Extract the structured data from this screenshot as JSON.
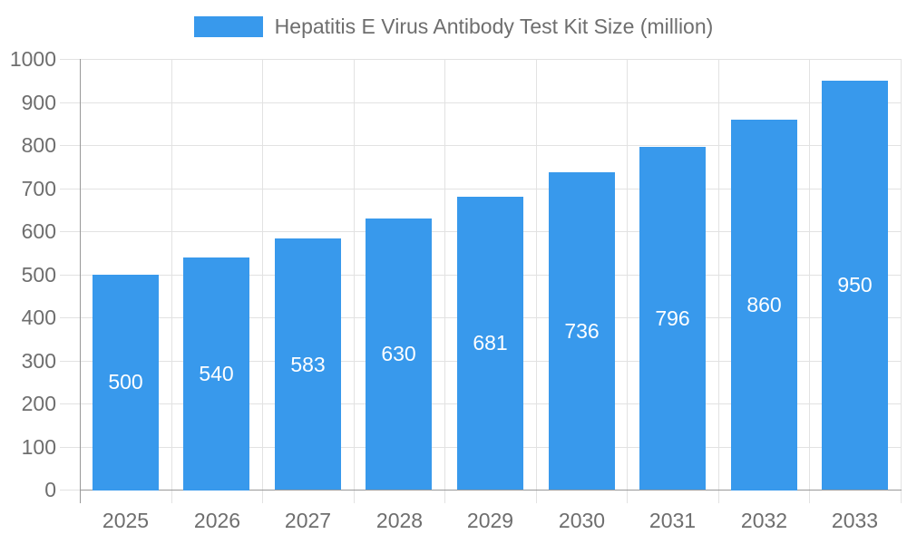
{
  "legend": {
    "label": "Hepatitis E Virus Antibody Test Kit Size (million)"
  },
  "chart_data": {
    "type": "bar",
    "title": "Hepatitis E Virus Antibody Test Kit Size (million)",
    "categories": [
      "2025",
      "2026",
      "2027",
      "2028",
      "2029",
      "2030",
      "2031",
      "2032",
      "2033"
    ],
    "values": [
      500,
      540,
      583,
      630,
      681,
      736,
      796,
      860,
      950
    ],
    "xlabel": "",
    "ylabel": "",
    "ylim": [
      0,
      1000
    ],
    "y_tick_step": 100,
    "y_tick_labels": [
      "0",
      "100",
      "200",
      "300",
      "400",
      "500",
      "600",
      "700",
      "800",
      "900",
      "1000"
    ],
    "grid": "horizontal and vertical light-gray gridlines",
    "legend_position": "top-center",
    "bar_label_position": "centered inside bar"
  },
  "colors": {
    "bar": "#3899EC",
    "grid_line": "#E2E2E2",
    "axis_line": "#999999",
    "axis_text": "#6E6E6E",
    "bar_label_text": "#FFFFFF",
    "background": "#FFFFFF"
  }
}
